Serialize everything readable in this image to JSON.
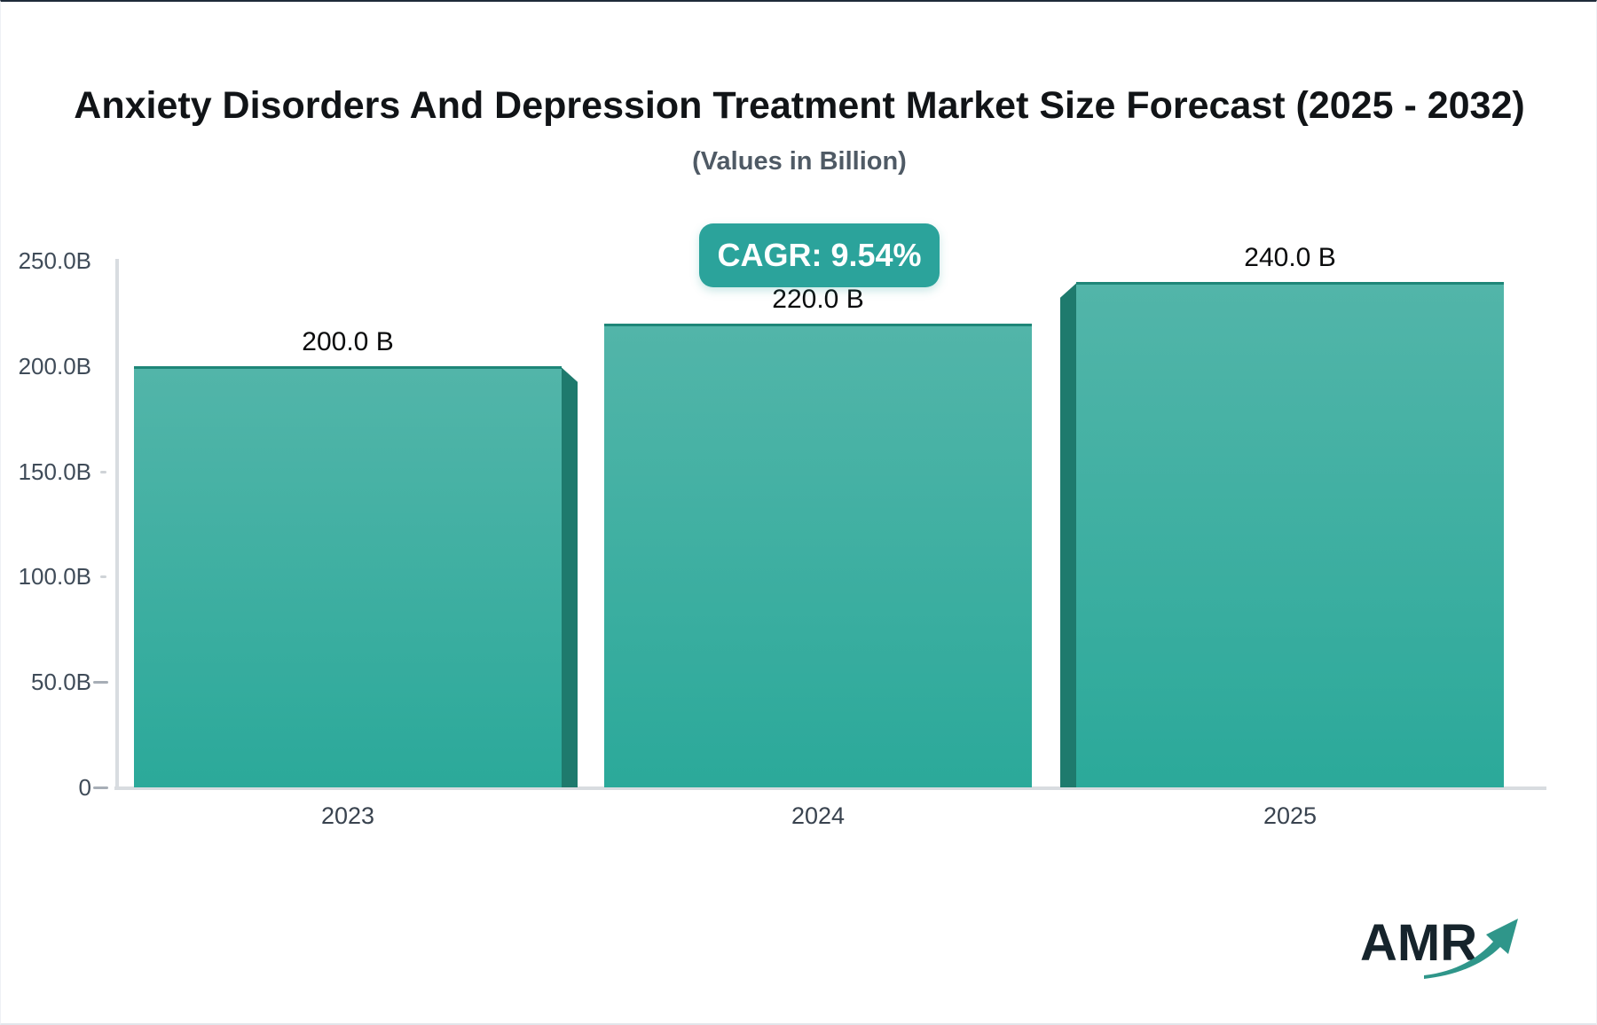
{
  "title": "Anxiety Disorders And Depression Treatment Market Size Forecast (2025 - 2032)",
  "subtitle": "(Values in Billion)",
  "cagr_badge": "CAGR: 9.54%",
  "watermark": {
    "text": "AMR",
    "icon": "growth-arrow-icon"
  },
  "colors": {
    "title": "#111417",
    "subtitle": "#4F5A65",
    "axis-line": "#D8DCE0",
    "axis-text": "#3F4B58",
    "year-text": "#39434F",
    "value-text": "#0B0C0D",
    "tick": "#A7AEB6",
    "bar-top": "#52B5A9",
    "bar-bottom": "#2BA99A",
    "bar-cap": "#1E8678",
    "bar-side": "#1E7A6D",
    "badge-bg": "#2BA39B",
    "logo-dark": "#16242C",
    "logo-teal": "#2F968A",
    "edge-top": "#1E2B39",
    "edge-light": "#EEF1F5",
    "edge-bottom": "#E2E6EB"
  },
  "chart_data": {
    "type": "bar",
    "title": "Anxiety Disorders And Depression Treatment Market Size Forecast (2025 - 2032)",
    "subtitle": "(Values in Billion)",
    "categories": [
      "2023",
      "2024",
      "2025"
    ],
    "values": [
      200.0,
      220.0,
      240.0
    ],
    "value_labels": [
      "200.0 B",
      "220.0 B",
      "240.0 B"
    ],
    "annotation": "CAGR: 9.54%",
    "ylim": [
      0,
      250
    ],
    "grid": false,
    "legend": false,
    "y_axis": [
      {
        "label": "250.0B",
        "value": 250,
        "tick": "none"
      },
      {
        "label": "200.0B",
        "value": 200,
        "tick": "none"
      },
      {
        "label": "150.0B",
        "value": 150,
        "tick": "short"
      },
      {
        "label": "100.0B",
        "value": 100,
        "tick": "short"
      },
      {
        "label": "50.0B",
        "value": 50,
        "tick": "long"
      },
      {
        "label": "0",
        "value": 0,
        "tick": "long"
      }
    ]
  }
}
